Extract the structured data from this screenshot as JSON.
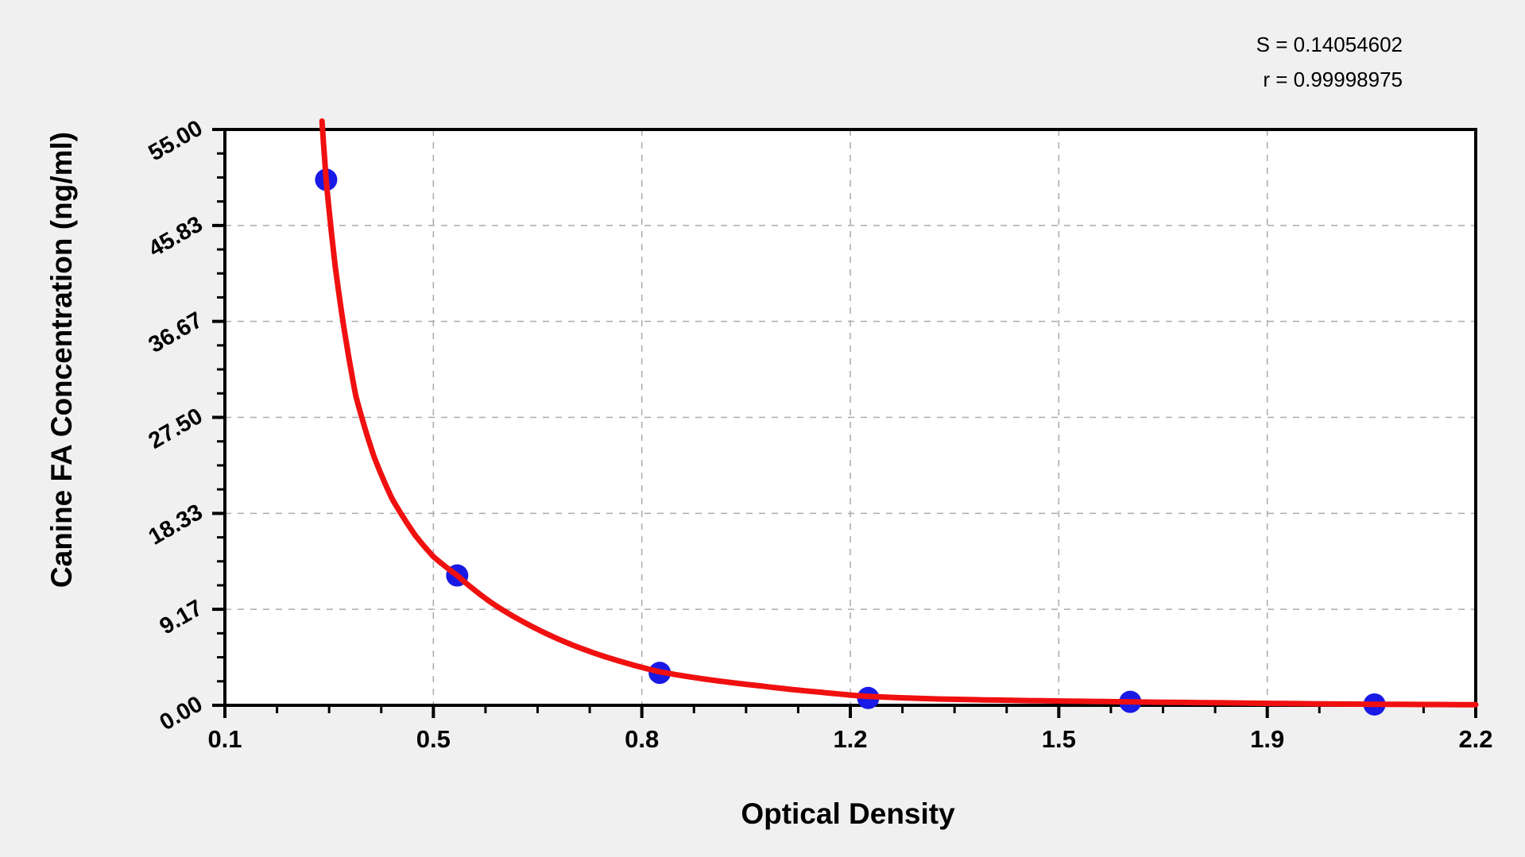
{
  "stats": {
    "s_line": "S = 0.14054602",
    "r_line": "r = 0.99998975"
  },
  "chart_data": {
    "type": "scatter",
    "title": "",
    "xlabel": "Optical Density",
    "ylabel": "Canine FA Concentration (ng/ml)",
    "xlim": [
      0.1,
      2.2
    ],
    "ylim": [
      0.0,
      55.0
    ],
    "x_major_ticks": [
      0.1,
      0.45,
      0.8,
      1.15,
      1.5,
      1.85,
      2.2
    ],
    "x_tick_labels": [
      "0.1",
      "0.5",
      "0.8",
      "1.2",
      "1.5",
      "1.9",
      "2.2"
    ],
    "y_major_ticks": [
      0.0,
      9.17,
      18.33,
      27.5,
      36.67,
      45.83,
      55.0
    ],
    "y_tick_labels": [
      "0.00",
      "9.17",
      "18.33",
      "27.50",
      "36.67",
      "45.83",
      "55.00"
    ],
    "minor_ticks_per_major_interval": 3,
    "grid": "dashed lines at interior major ticks, both axes",
    "legend": "none",
    "fit": {
      "S": 0.14054602,
      "r": 0.99998975
    },
    "series": [
      {
        "name": "standard-points",
        "type": "scatter",
        "color": "#1a1ae6",
        "points_od_conc": [
          [
            0.27,
            50.2
          ],
          [
            0.49,
            12.4
          ],
          [
            0.83,
            3.1
          ],
          [
            1.18,
            0.7
          ],
          [
            1.62,
            0.33
          ],
          [
            2.03,
            0.08
          ]
        ]
      },
      {
        "name": "fitted-curve",
        "type": "line",
        "color": "#f01010",
        "points_od_conc": [
          [
            0.263,
            55.8
          ],
          [
            0.27,
            50.2
          ],
          [
            0.285,
            42.0
          ],
          [
            0.3,
            36.0
          ],
          [
            0.32,
            29.5
          ],
          [
            0.35,
            23.8
          ],
          [
            0.38,
            19.8
          ],
          [
            0.42,
            16.2
          ],
          [
            0.45,
            14.2
          ],
          [
            0.49,
            12.4
          ],
          [
            0.55,
            9.7
          ],
          [
            0.62,
            7.4
          ],
          [
            0.7,
            5.4
          ],
          [
            0.77,
            4.1
          ],
          [
            0.83,
            3.2
          ],
          [
            0.9,
            2.55
          ],
          [
            1.0,
            1.85
          ],
          [
            1.1,
            1.25
          ],
          [
            1.18,
            0.85
          ],
          [
            1.3,
            0.6
          ],
          [
            1.45,
            0.45
          ],
          [
            1.62,
            0.33
          ],
          [
            1.8,
            0.22
          ],
          [
            2.03,
            0.1
          ],
          [
            2.2,
            0.06
          ]
        ]
      }
    ],
    "colors": {
      "background": "#f0f0f0",
      "plot_background": "#ffffff",
      "axis": "#000000",
      "grid": "#aaaaaa",
      "curve": "#f01010",
      "point": "#1a1ae6",
      "text": "#000000"
    }
  }
}
